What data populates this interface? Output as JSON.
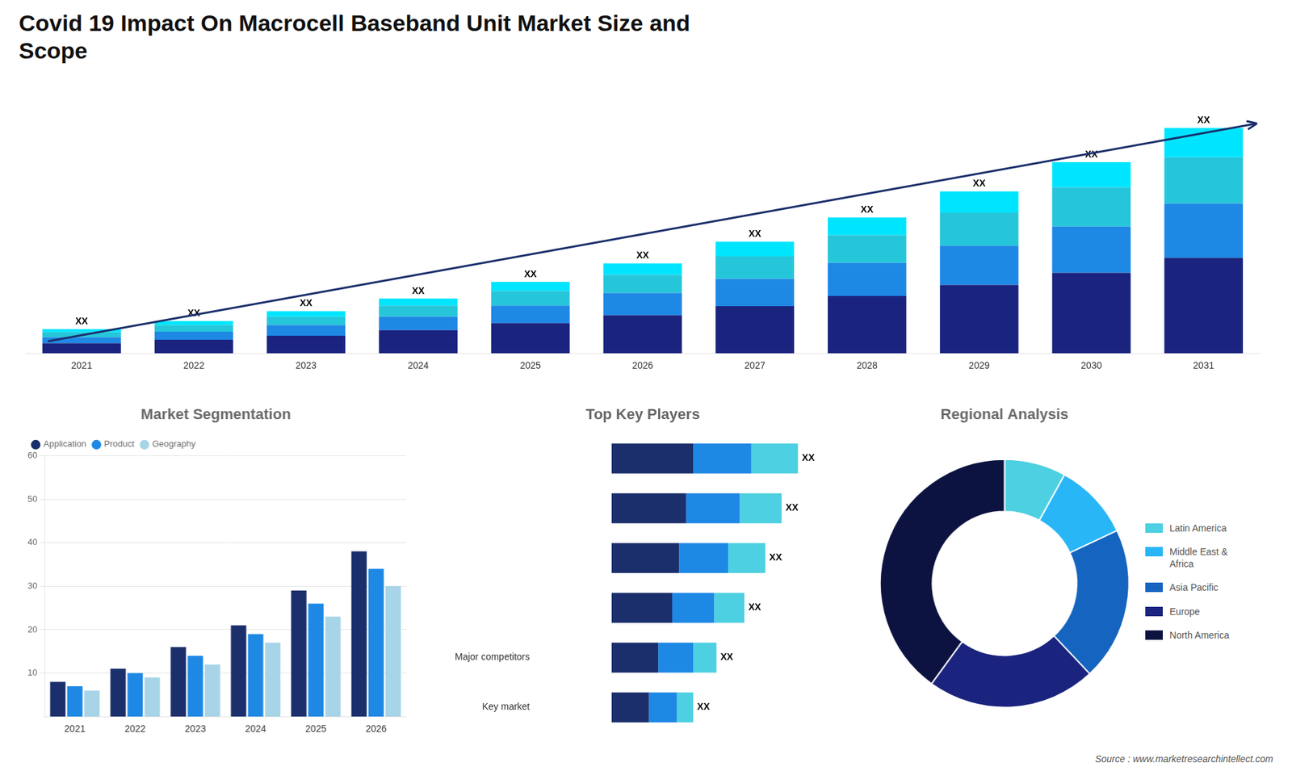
{
  "title": "Covid 19 Impact On Macrocell Baseband Unit Market Size and\nScope",
  "source": "Source : www.marketresearchintellect.com",
  "chart_data": [
    {
      "type": "bar",
      "stacked": true,
      "categories": [
        "2021",
        "2022",
        "2023",
        "2024",
        "2025",
        "2026",
        "2027",
        "2028",
        "2029",
        "2030",
        "2031"
      ],
      "series": [
        {
          "color": "#1a237e",
          "values": [
            1.0,
            1.35,
            1.75,
            2.3,
            3.0,
            3.8,
            4.7,
            5.7,
            6.8,
            8.0,
            9.5
          ]
        },
        {
          "color": "#1e88e5",
          "values": [
            0.6,
            0.8,
            1.05,
            1.35,
            1.75,
            2.2,
            2.7,
            3.3,
            3.9,
            4.6,
            5.4
          ]
        },
        {
          "color": "#26c6da",
          "values": [
            0.5,
            0.65,
            0.85,
            1.1,
            1.45,
            1.8,
            2.25,
            2.75,
            3.3,
            3.9,
            4.6
          ]
        },
        {
          "color": "#00e5ff",
          "values": [
            0.3,
            0.4,
            0.55,
            0.7,
            0.9,
            1.15,
            1.45,
            1.75,
            2.1,
            2.5,
            2.9
          ]
        }
      ],
      "total_labels": [
        "XX",
        "XX",
        "XX",
        "XX",
        "XX",
        "XX",
        "XX",
        "XX",
        "XX",
        "XX",
        "XX"
      ],
      "ylim": [
        0,
        26.432
      ],
      "tick_labels": "x",
      "grid": false
    },
    {
      "type": "bar",
      "title": "Market Segmentation",
      "categories": [
        "2021",
        "2022",
        "2023",
        "2024",
        "2025",
        "2026"
      ],
      "series": [
        {
          "name": "Application",
          "color": "#1a2f6b",
          "values": [
            8,
            11,
            16,
            21,
            29,
            38
          ]
        },
        {
          "name": "Product",
          "color": "#1e88e5",
          "values": [
            7,
            10,
            14,
            19,
            26,
            34
          ]
        },
        {
          "name": "Geography",
          "color": "#a8d4e8",
          "values": [
            6,
            9,
            12,
            17,
            23,
            30
          ]
        }
      ],
      "ylim": [
        0,
        60
      ],
      "yticks": [
        10,
        20,
        30,
        40,
        50,
        60
      ],
      "grid": true,
      "legend": "upper left"
    },
    {
      "type": "bar",
      "title": "Top Key Players",
      "orientation": "horizontal",
      "stacked": true,
      "categories": [
        null,
        null,
        null,
        null,
        "Major competitors",
        "Key market"
      ],
      "series": [
        {
          "color": "#1a2f6b",
          "values": [
            3.5,
            3.2,
            2.9,
            2.6,
            2.0,
            1.6
          ]
        },
        {
          "color": "#1e88e5",
          "values": [
            2.5,
            2.3,
            2.1,
            1.8,
            1.5,
            1.2
          ]
        },
        {
          "color": "#4dd0e1",
          "values": [
            2.0,
            1.8,
            1.6,
            1.3,
            1.0,
            0.7
          ]
        }
      ],
      "total_labels": [
        "XX",
        "XX",
        "XX",
        "XX",
        "XX",
        "XX"
      ],
      "xlim": [
        -3.2,
        9.5
      ],
      "tick_labels": "y",
      "grid": false
    },
    {
      "type": "doughnut",
      "title": "Regional Analysis",
      "categories": [
        "Latin America",
        "Middle East &\nAfrica",
        "Asia Pacific",
        "Europe",
        "North America"
      ],
      "values": [
        8,
        10,
        20,
        22,
        40
      ],
      "colors": [
        "#4dd0e1",
        "#29b6f6",
        "#1565c0",
        "#1a237e",
        "#0d1340"
      ],
      "legend": "right"
    }
  ]
}
